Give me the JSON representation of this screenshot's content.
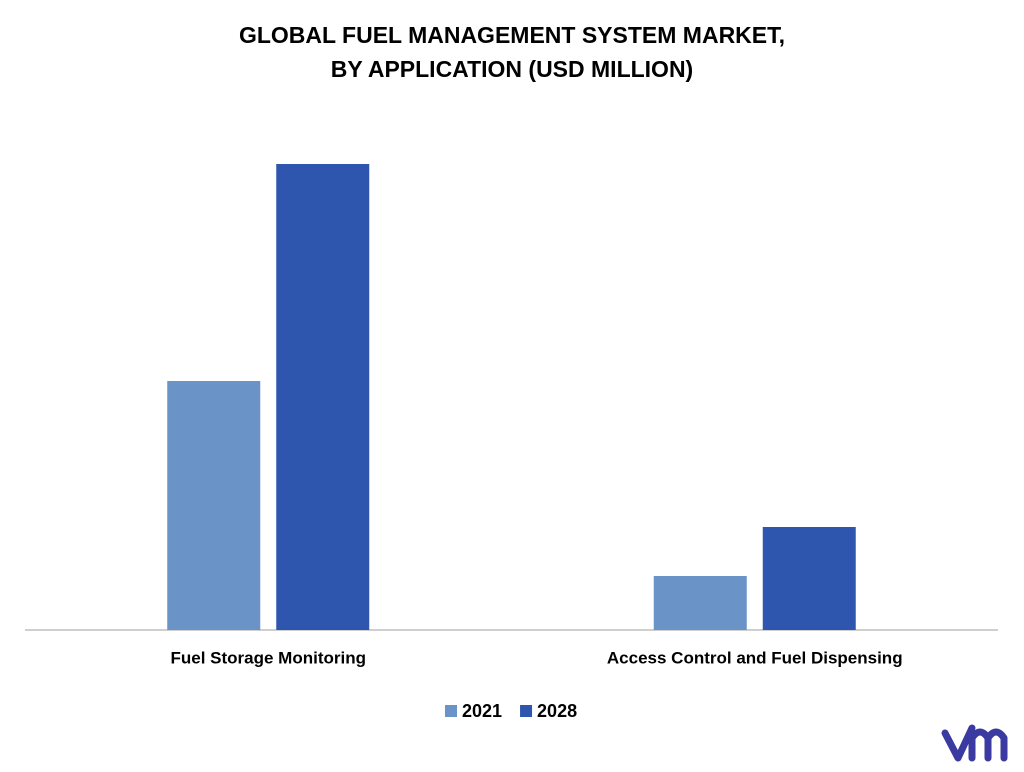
{
  "chart_data": {
    "type": "bar",
    "title": [
      "GLOBAL FUEL MANAGEMENT SYSTEM MARKET,",
      "BY APPLICATION (USD MILLION)"
    ],
    "categories": [
      "Fuel Storage Monitoring",
      "Access Control and Fuel Dispensing"
    ],
    "series": [
      {
        "name": "2021",
        "color": "#6a93c8",
        "values": [
          249,
          54
        ]
      },
      {
        "name": "2028",
        "color": "#2e56ae",
        "values": [
          466,
          103
        ]
      }
    ],
    "ylim": [
      0,
      500
    ]
  }
}
